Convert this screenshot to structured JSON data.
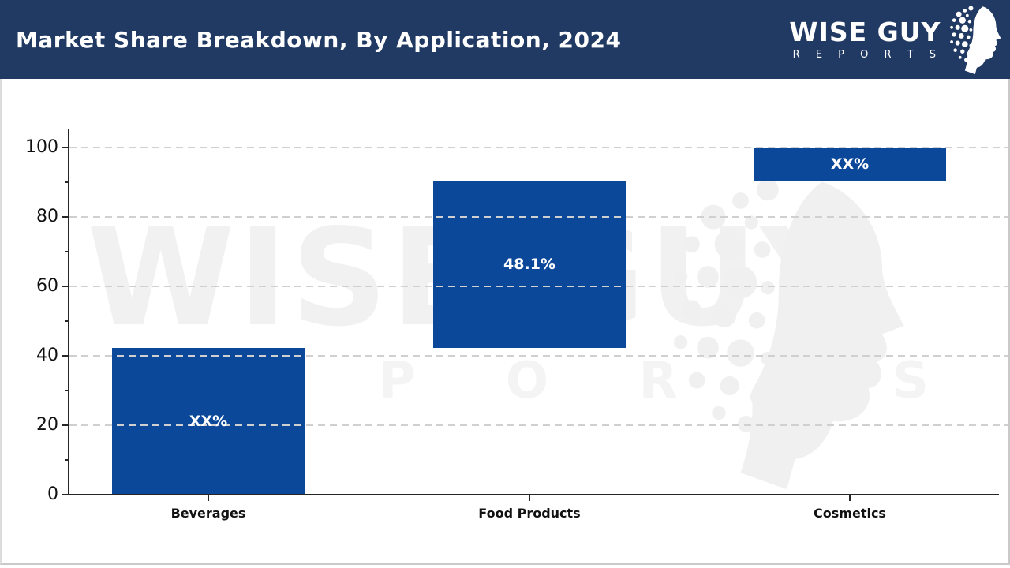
{
  "header": {
    "title": "Market Share Breakdown, By Application, 2024",
    "logo": {
      "wordmark": "WISE GUY",
      "subtitle": "R E P O R T S"
    }
  },
  "watermark": {
    "wordmark": "WISE GUY",
    "subtitle": "R E P O R T S"
  },
  "chart_data": {
    "type": "bar",
    "subtype": "floating-waterfall",
    "title": "Market Share Breakdown, By Application, 2024",
    "categories": [
      "Beverages",
      "Food Products",
      "Cosmetics"
    ],
    "bars": [
      {
        "category": "Beverages",
        "from": 0,
        "to": 42.2,
        "label": "XX%"
      },
      {
        "category": "Food Products",
        "from": 42.2,
        "to": 90.3,
        "label": "48.1%"
      },
      {
        "category": "Cosmetics",
        "from": 90.3,
        "to": 100,
        "label": "XX%"
      }
    ],
    "ylim": [
      0,
      105
    ],
    "yticks_major": [
      0,
      20,
      40,
      60,
      80,
      100
    ],
    "yticks_minor": [
      10,
      30,
      50,
      70,
      90
    ],
    "grid": "dashed horizontal gridlines at major ticks, drawn over bars",
    "legend": "none",
    "xlabel": "",
    "ylabel": ""
  },
  "colors": {
    "header_bg": "#213A64",
    "bar_fill": "#0B4899",
    "gridline": "#d0d0d0",
    "axis": "#262626",
    "tick_label": "#111111",
    "x_label": "#111111",
    "bar_label": "#ffffff",
    "frame_border": "#c9c9c9",
    "watermark": "#f1f1f1",
    "logo_text": "#ffffff"
  }
}
